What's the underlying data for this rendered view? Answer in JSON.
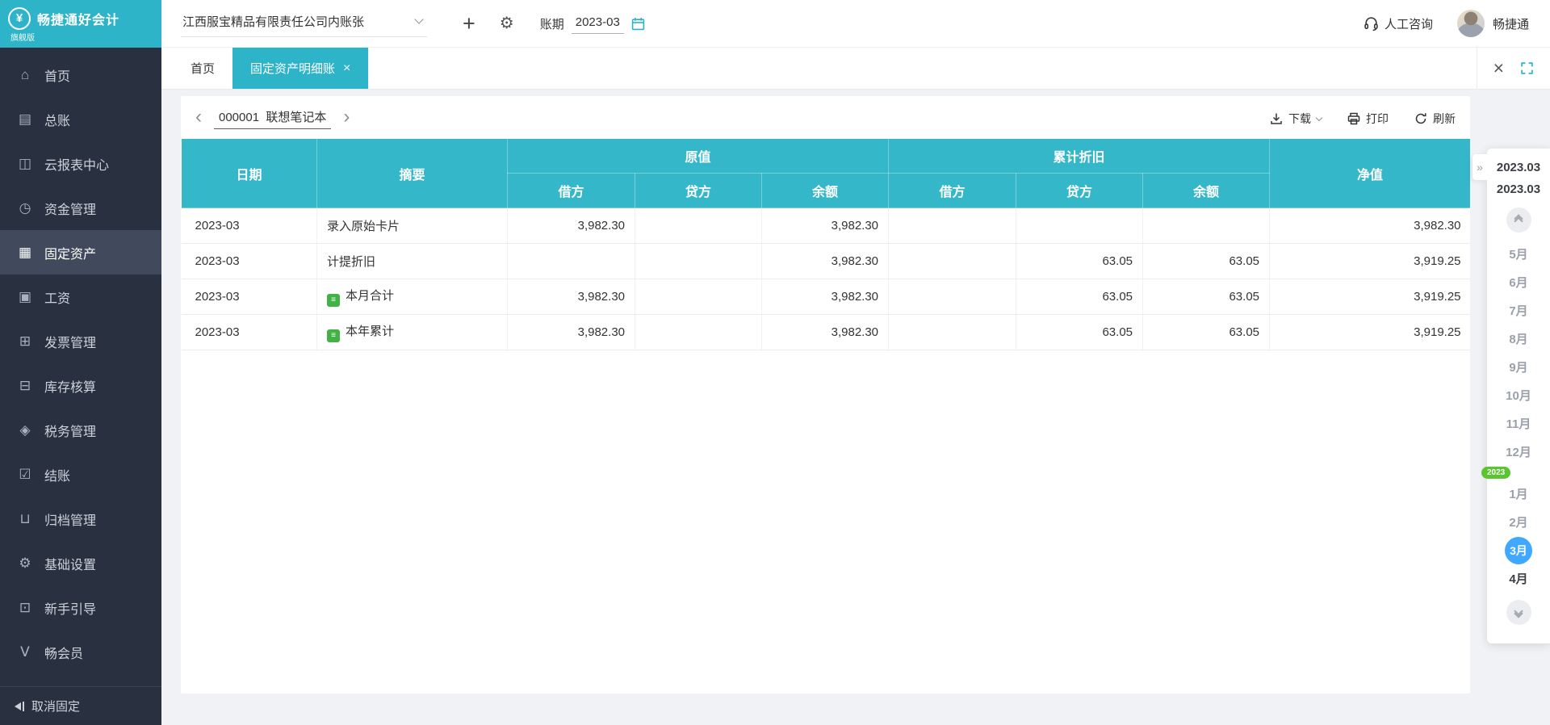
{
  "colors": {
    "accent": "#2db4c8",
    "table_header": "#35b7ca",
    "sidebar_bg": "#293140",
    "active_month": "#40a9ff",
    "year_badge": "#5bc531",
    "summary_icon_green": "#43b244"
  },
  "icons": {
    "coin": "¥",
    "add": "+",
    "gear": "⚙",
    "close": "×",
    "expand": "»",
    "prev": "‹",
    "next": "›"
  },
  "logo": {
    "title": "畅捷通好会计",
    "subtitle": "旗舰版"
  },
  "topbar": {
    "company": "江西服宝精品有限责任公司内账张",
    "period_label": "账期",
    "period_value": "2023-03",
    "support_label": "人工咨询",
    "username": "畅捷通"
  },
  "sidebar": {
    "items": [
      {
        "id": "home",
        "label": "首页",
        "icon": "home-icon"
      },
      {
        "id": "general-ledger",
        "label": "总账",
        "icon": "ledger-icon"
      },
      {
        "id": "cloud-report-center",
        "label": "云报表中心",
        "icon": "report-icon"
      },
      {
        "id": "fund-management",
        "label": "资金管理",
        "icon": "fund-icon"
      },
      {
        "id": "fixed-assets",
        "label": "固定资产",
        "icon": "asset-icon",
        "active": true
      },
      {
        "id": "salary",
        "label": "工资",
        "icon": "salary-icon"
      },
      {
        "id": "invoice-management",
        "label": "发票管理",
        "icon": "invoice-icon"
      },
      {
        "id": "inventory-accounting",
        "label": "库存核算",
        "icon": "inventory-icon"
      },
      {
        "id": "tax-management",
        "label": "税务管理",
        "icon": "tax-icon"
      },
      {
        "id": "closing",
        "label": "结账",
        "icon": "closing-icon"
      },
      {
        "id": "archive-management",
        "label": "归档管理",
        "icon": "archive-icon"
      },
      {
        "id": "basic-settings",
        "label": "基础设置",
        "icon": "settings-icon"
      },
      {
        "id": "beginner-guide",
        "label": "新手引导",
        "icon": "guide-icon"
      },
      {
        "id": "member",
        "label": "畅会员",
        "icon": "member-icon"
      }
    ],
    "footer_label": "取消固定"
  },
  "tabs": [
    {
      "id": "home",
      "label": "首页",
      "active": false,
      "closable": false
    },
    {
      "id": "fixed-asset-ledger",
      "label": "固定资产明细账",
      "active": true,
      "closable": true
    }
  ],
  "toolbar": {
    "asset_code_name": "000001  联想笔记本",
    "download_label": "下载",
    "print_label": "打印",
    "refresh_label": "刷新"
  },
  "table": {
    "headers": {
      "date": "日期",
      "summary": "摘要",
      "original_value": "原值",
      "accumulated_depreciation": "累计折旧",
      "net_value": "净值",
      "debit": "借方",
      "credit": "贷方",
      "balance": "余额"
    },
    "rows": [
      {
        "date": "2023-03",
        "summary": "录入原始卡片",
        "summary_icon": false,
        "orig_debit": "3,982.30",
        "orig_credit": "",
        "orig_balance": "3,982.30",
        "dep_debit": "",
        "dep_credit": "",
        "dep_balance": "",
        "net": "3,982.30"
      },
      {
        "date": "2023-03",
        "summary": "计提折旧",
        "summary_icon": false,
        "orig_debit": "",
        "orig_credit": "",
        "orig_balance": "3,982.30",
        "dep_debit": "",
        "dep_credit": "63.05",
        "dep_balance": "63.05",
        "net": "3,919.25"
      },
      {
        "date": "2023-03",
        "summary": "本月合计",
        "summary_icon": true,
        "orig_debit": "3,982.30",
        "orig_credit": "",
        "orig_balance": "3,982.30",
        "dep_debit": "",
        "dep_credit": "63.05",
        "dep_balance": "63.05",
        "net": "3,919.25"
      },
      {
        "date": "2023-03",
        "summary": "本年累计",
        "summary_icon": true,
        "orig_debit": "3,982.30",
        "orig_credit": "",
        "orig_balance": "3,982.30",
        "dep_debit": "",
        "dep_credit": "63.05",
        "dep_balance": "63.05",
        "net": "3,919.25"
      }
    ]
  },
  "timeline": {
    "period_top": "2023.03",
    "period_bottom": "2023.03",
    "items": [
      {
        "type": "month",
        "label": "5月"
      },
      {
        "type": "month",
        "label": "6月"
      },
      {
        "type": "month",
        "label": "7月"
      },
      {
        "type": "month",
        "label": "8月"
      },
      {
        "type": "month",
        "label": "9月"
      },
      {
        "type": "month",
        "label": "10月"
      },
      {
        "type": "month",
        "label": "11月"
      },
      {
        "type": "month",
        "label": "12月"
      },
      {
        "type": "year-badge",
        "label": "2023"
      },
      {
        "type": "month",
        "label": "1月"
      },
      {
        "type": "month",
        "label": "2月"
      },
      {
        "type": "month",
        "label": "3月",
        "active": true
      },
      {
        "type": "month",
        "label": "4月",
        "emphasis": true
      }
    ]
  }
}
